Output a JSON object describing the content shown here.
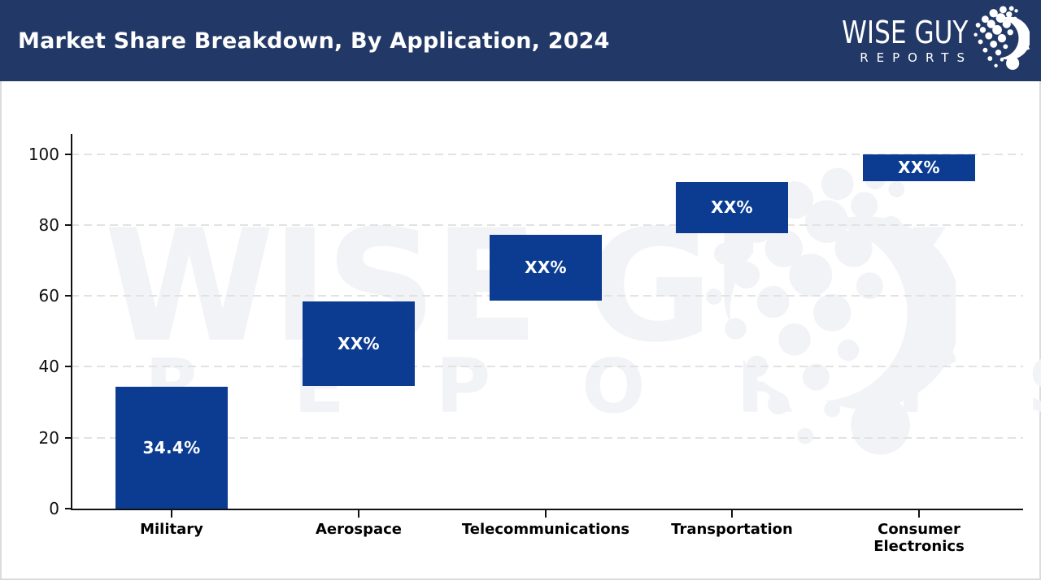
{
  "header": {
    "title": "Market Share Breakdown, By Application, 2024",
    "logo_line1": "WISE GUY",
    "logo_line2": "REPORTS",
    "bg_color": "#223866"
  },
  "watermark": {
    "line1": "WISE GUY",
    "line2": "R E P O R T S"
  },
  "chart_data": {
    "type": "bar",
    "variant": "waterfall",
    "title": "Market Share Breakdown, By Application, 2024",
    "xlabel": "",
    "ylabel": "",
    "categories": [
      "Military",
      "Aerospace",
      "Telecommunications",
      "Transportation",
      "Consumer\nElectronics"
    ],
    "segments": [
      {
        "category": "Military",
        "label": "34.4%",
        "start": 0,
        "end": 34.4
      },
      {
        "category": "Aerospace",
        "label": "XX%",
        "start": 34.7,
        "end": 58.5
      },
      {
        "category": "Telecommunications",
        "label": "XX%",
        "start": 58.7,
        "end": 77.3
      },
      {
        "category": "Transportation",
        "label": "XX%",
        "start": 77.7,
        "end": 92.1
      },
      {
        "category": "Consumer Electronics",
        "label": "XX%",
        "start": 92.3,
        "end": 100
      }
    ],
    "yticks": [
      0,
      20,
      40,
      60,
      80,
      100
    ],
    "ylim": [
      0,
      105
    ],
    "grid": "horizontal-dashed",
    "legend": "none",
    "bar_color": "#0B3C91",
    "bar_label_color": "#ffffff",
    "header_bg_color": "#223866",
    "gridline_color": "#e2e2e2",
    "watermark_color": "#f2f3f6"
  }
}
